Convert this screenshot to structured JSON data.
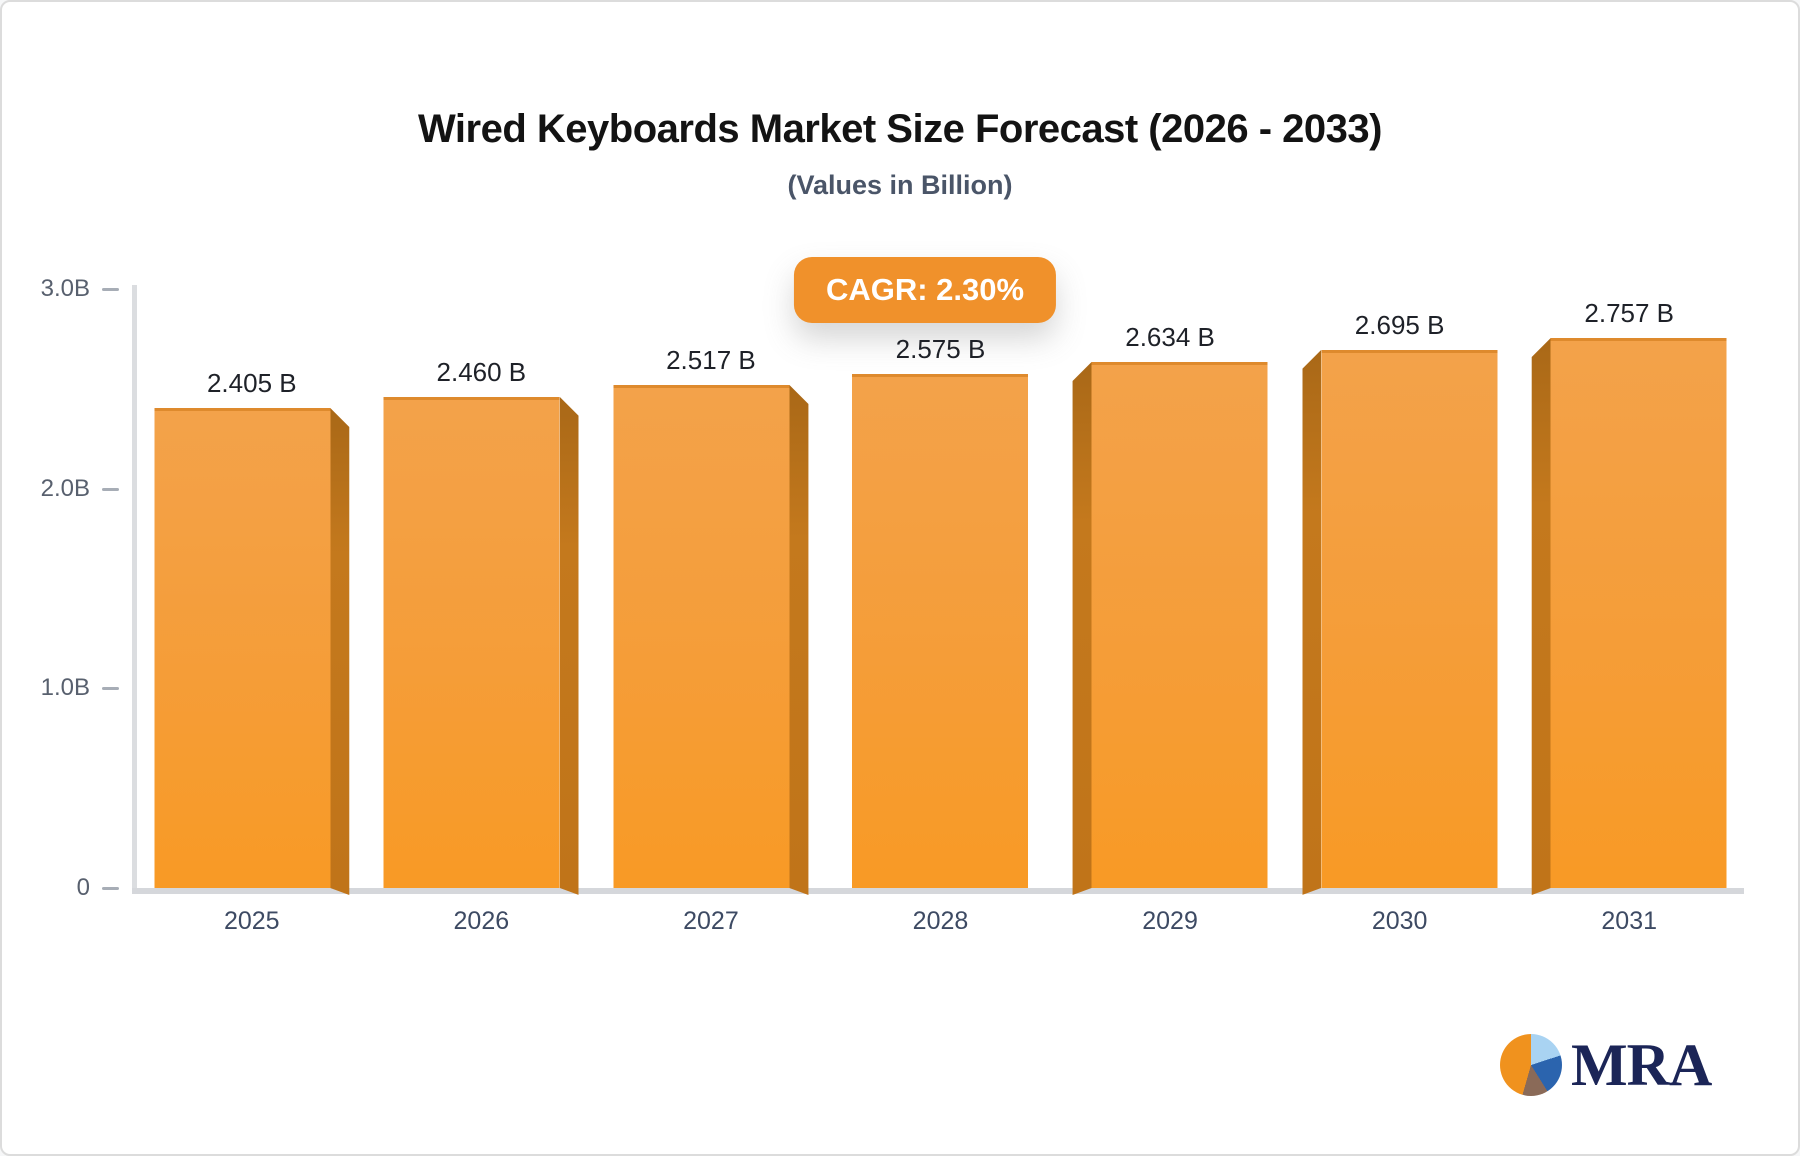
{
  "header": {
    "title": "Wired Keyboards Market Size Forecast (2026 - 2033)",
    "subtitle": "(Values in Billion)"
  },
  "badge": {
    "label": "CAGR: 2.30%",
    "background": "#f0912b",
    "text_color": "#ffffff"
  },
  "chart_data": {
    "type": "bar",
    "title": "Wired Keyboards Market Size Forecast (2026 - 2033)",
    "subtitle": "(Values in Billion)",
    "unit": "Billion USD",
    "categories": [
      "2025",
      "2026",
      "2027",
      "2028",
      "2029",
      "2030",
      "2031"
    ],
    "values": [
      2.405,
      2.46,
      2.517,
      2.575,
      2.634,
      2.695,
      2.757
    ],
    "value_labels": [
      "2.405 B",
      "2.460 B",
      "2.517 B",
      "2.575 B",
      "2.634 B",
      "2.695 B",
      "2.757 B"
    ],
    "cagr_label": "CAGR: 2.30%",
    "xlabel": "",
    "ylabel": "",
    "ylim": [
      0,
      3.0
    ],
    "y_ticks": [
      {
        "label": "3.0B",
        "value": 3.0
      },
      {
        "label": "2.0B",
        "value": 2.0
      },
      {
        "label": "1.0B",
        "value": 1.0
      },
      {
        "label": "0",
        "value": 0
      }
    ],
    "grid": false,
    "legend": "none",
    "bar_style": "pseudo-3d",
    "bar_color_top": "#f3a24a",
    "bar_color_bottom": "#f89a25",
    "bar_side_color": "#be751c",
    "axis_color": "#d5d7db"
  },
  "logo": {
    "text": "MRA",
    "text_color": "#1b2557",
    "pie_slice_colors": {
      "orange": "#f0921e",
      "light_blue": "#a9d3f2",
      "dark_blue": "#2b64ae",
      "brown": "#8a6a58"
    }
  }
}
